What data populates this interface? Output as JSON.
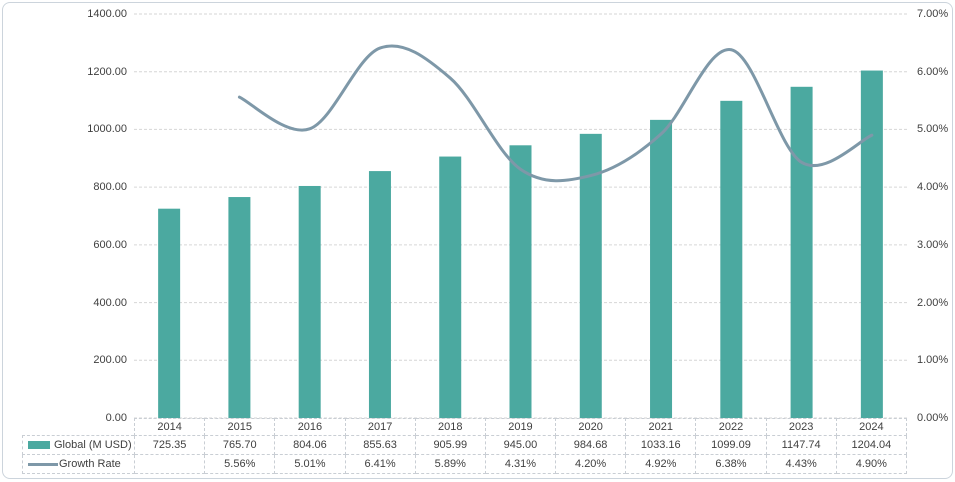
{
  "colors": {
    "bar": "#4BA9A0",
    "line": "#7E98A8",
    "grid": "#d6d6d6",
    "text": "#3f3f3f",
    "table_border": "#c9ced4",
    "frame_border": "#ccd4dc"
  },
  "chart_data": {
    "type": "combo-bar-line",
    "categories": [
      "2014",
      "2015",
      "2016",
      "2017",
      "2018",
      "2019",
      "2020",
      "2021",
      "2022",
      "2023",
      "2024"
    ],
    "series": [
      {
        "name": "Global (M USD)",
        "type": "bar",
        "axis": "left",
        "values": [
          725.35,
          765.7,
          804.06,
          855.63,
          905.99,
          945.0,
          984.68,
          1033.16,
          1099.09,
          1147.74,
          1204.04
        ],
        "labels": [
          "725.35",
          "765.70",
          "804.06",
          "855.63",
          "905.99",
          "945.00",
          "984.68",
          "1033.16",
          "1099.09",
          "1147.74",
          "1204.04"
        ]
      },
      {
        "name": "Growth Rate",
        "type": "line",
        "axis": "right",
        "values": [
          null,
          5.56,
          5.01,
          6.41,
          5.89,
          4.31,
          4.2,
          4.92,
          6.38,
          4.43,
          4.9
        ],
        "labels": [
          "",
          "5.56%",
          "5.01%",
          "6.41%",
          "5.89%",
          "4.31%",
          "4.20%",
          "4.92%",
          "6.38%",
          "4.43%",
          "4.90%"
        ]
      }
    ],
    "left_axis": {
      "min": 0,
      "max": 1400,
      "ticks": [
        "0.00",
        "200.00",
        "400.00",
        "600.00",
        "800.00",
        "1000.00",
        "1200.00",
        "1400.00"
      ]
    },
    "right_axis": {
      "min": 0,
      "max": 7,
      "ticks": [
        "0.00%",
        "1.00%",
        "2.00%",
        "3.00%",
        "4.00%",
        "5.00%",
        "6.00%",
        "7.00%"
      ]
    },
    "grid": true,
    "legend_position": "table-left",
    "title": ""
  }
}
